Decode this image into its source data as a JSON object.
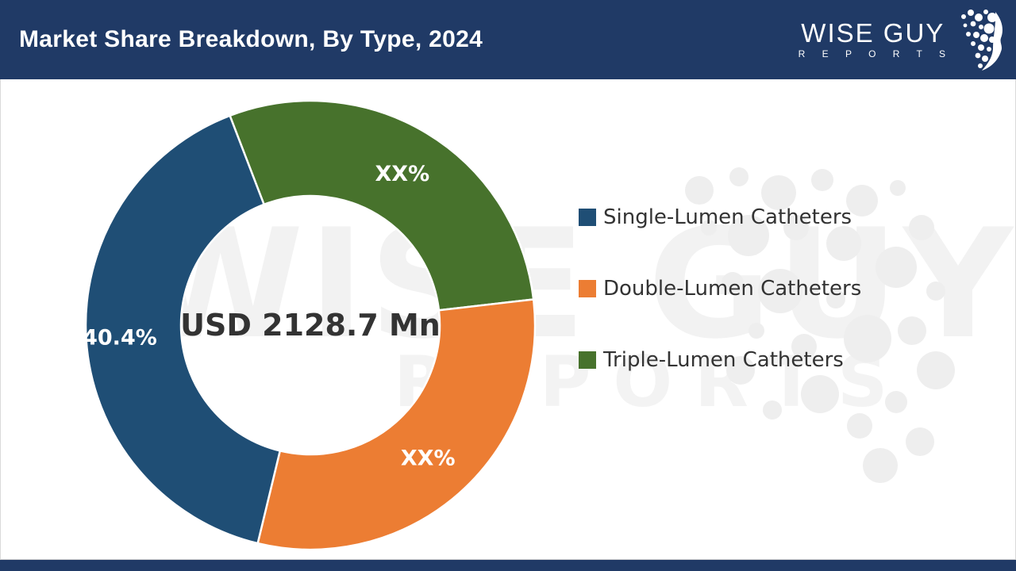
{
  "header": {
    "title": "Market Share Breakdown, By Type, 2024",
    "logo_line1": "WISE GUY",
    "logo_line2": "R E P O R T S"
  },
  "watermark": {
    "line1": "WISE GUY",
    "line2": "REPORTS"
  },
  "chart_data": {
    "type": "pie",
    "donut": true,
    "title": "Market Share Breakdown, By Type, 2024",
    "center_label": "USD 2128.7 Mn",
    "categories": [
      "Single-Lumen Catheters",
      "Double-Lumen Catheters",
      "Triple-Lumen Catheters"
    ],
    "values_pct": [
      40.4,
      30.6,
      29.0
    ],
    "slice_labels": [
      "40.4%",
      "XX%",
      "XX%"
    ],
    "colors": [
      "#1F4E75",
      "#EC7D33",
      "#47722C"
    ],
    "start_angle_deg": 111,
    "counterclockwise": true,
    "label_distance": [
      0.85,
      0.79,
      0.79
    ],
    "legend_position": "right"
  },
  "colors": {
    "header_bg": "#203A66",
    "footer_bg": "#203A66",
    "center_text": "#333333",
    "legend_text": "#333333",
    "slice_label_text": "#FFFFFF",
    "watermark": "#F2F2F2"
  }
}
